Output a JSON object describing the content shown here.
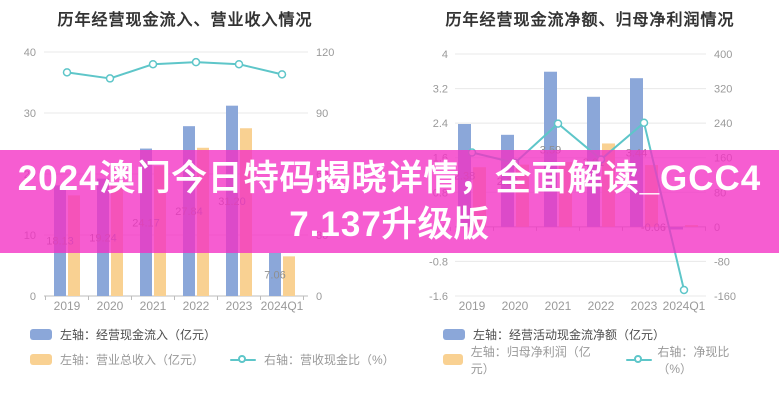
{
  "banner": {
    "text": "2024澳门今日特码揭晓详情，全面解读_GCC47.137升级版",
    "overlay_color": "#f32fc4c7",
    "text_color": "#ffffff"
  },
  "colors": {
    "bar_blue": "#8ba7d9",
    "bar_orange": "#f9d192",
    "line_teal": "#5ec6c9",
    "grid": "#e8e8e8",
    "axis_line": "#bcbcbc",
    "axis_text": "#9a9a9a",
    "value_label": "#8f8f8f",
    "title_text": "#333333"
  },
  "chart_data": [
    {
      "type": "bar",
      "title": "历年经营现金流入、营业收入情况",
      "categories": [
        "2019",
        "2020",
        "2021",
        "2022",
        "2023",
        "2024Q1"
      ],
      "left_axis": {
        "min": 0,
        "max": 40,
        "ticks": [
          40,
          30,
          20,
          10,
          0
        ]
      },
      "right_axis": {
        "min": 0,
        "max": 120,
        "ticks": [
          120,
          90,
          60,
          30,
          0
        ]
      },
      "grid": true,
      "legend_position": "bottom",
      "series": [
        {
          "name": "左轴：经营现金流入（亿元）",
          "type": "bar",
          "axis": "left",
          "color_key": "bar_blue",
          "values": [
            18.13,
            19.24,
            24.17,
            27.84,
            31.2,
            7.06
          ],
          "labels": [
            "18.13",
            "19.24",
            "24.17",
            "27.84",
            "31.20",
            "7.06"
          ]
        },
        {
          "name": "左轴：营业总收入（亿元）",
          "type": "bar",
          "axis": "left",
          "color_key": "bar_orange",
          "values": [
            16.5,
            18.0,
            21.3,
            24.3,
            27.5,
            6.5
          ]
        },
        {
          "name": "右轴：营收现金比（%）",
          "type": "line",
          "axis": "right",
          "color_key": "line_teal",
          "values": [
            110,
            107,
            114,
            115,
            114,
            109
          ]
        }
      ]
    },
    {
      "type": "bar",
      "title": "历年经营现金流净额、归母净利润情况",
      "categories": [
        "2019",
        "2020",
        "2021",
        "2022",
        "2023",
        "2024Q1"
      ],
      "left_axis": {
        "min": -1.6,
        "max": 4,
        "ticks": [
          4,
          3.2,
          2.4,
          1.6,
          0.8,
          0,
          -0.8,
          -1.6
        ]
      },
      "right_axis": {
        "min": -160,
        "max": 400,
        "ticks": [
          400,
          320,
          240,
          160,
          80,
          0,
          -80,
          -160
        ]
      },
      "grid": true,
      "legend_position": "bottom",
      "series": [
        {
          "name": "左轴：经营活动现金流净额（亿元）",
          "type": "bar",
          "axis": "left",
          "color_key": "bar_blue",
          "values": [
            2.38,
            2.13,
            3.59,
            3.01,
            3.44,
            -0.06
          ],
          "labels": [
            "2.38",
            "2.13",
            "3.59",
            "3.01",
            "3.44",
            "-0.06"
          ]
        },
        {
          "name": "左轴：归母净利润（亿元）",
          "type": "bar",
          "axis": "left",
          "color_key": "bar_orange",
          "values": [
            1.38,
            1.44,
            1.5,
            1.93,
            1.43,
            0.04
          ]
        },
        {
          "name": "右轴：净现比（%）",
          "type": "line",
          "axis": "right",
          "color_key": "line_teal",
          "values": [
            172,
            148,
            239,
            156,
            241,
            -146
          ]
        }
      ]
    }
  ]
}
